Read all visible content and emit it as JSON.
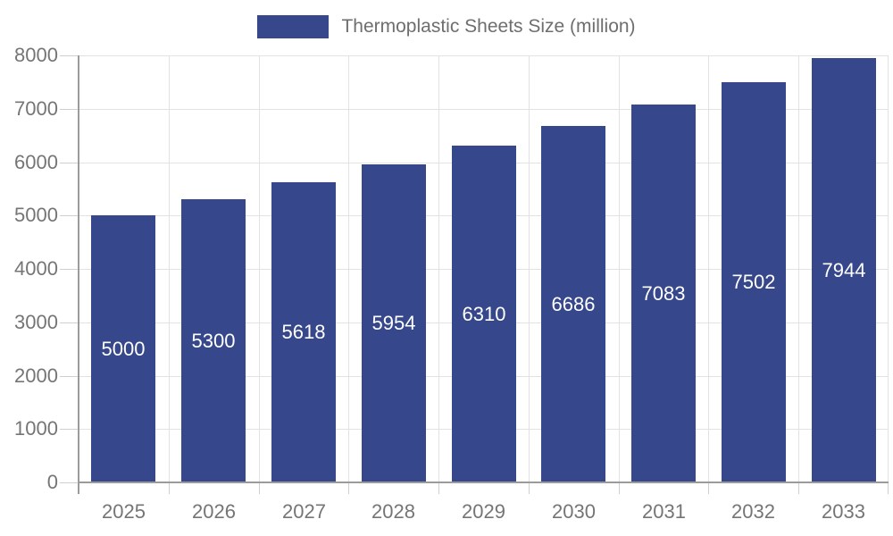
{
  "legend": {
    "label": "Thermoplastic Sheets Size (million)"
  },
  "chart_data": {
    "type": "bar",
    "title": "Thermoplastic Sheets Size (million)",
    "categories": [
      "2025",
      "2026",
      "2027",
      "2028",
      "2029",
      "2030",
      "2031",
      "2032",
      "2033"
    ],
    "values": [
      5000,
      5300,
      5618,
      5954,
      6310,
      6686,
      7083,
      7502,
      7944
    ],
    "xlabel": "",
    "ylabel": "",
    "ylim": [
      0,
      8000
    ],
    "ytick_step": 1000,
    "grid": true,
    "legend_position": "top-center",
    "value_labels": "inside-center-white",
    "colors": {
      "bar": "#36478B",
      "bar_label": "#FFFFFF",
      "axis_text": "#757575",
      "legend_text": "#6E6E6E",
      "gridline": "#E2E2E2",
      "axis_line": "#9B9B9B",
      "tick": "#CFCFCF",
      "background": "#FFFFFF"
    }
  }
}
